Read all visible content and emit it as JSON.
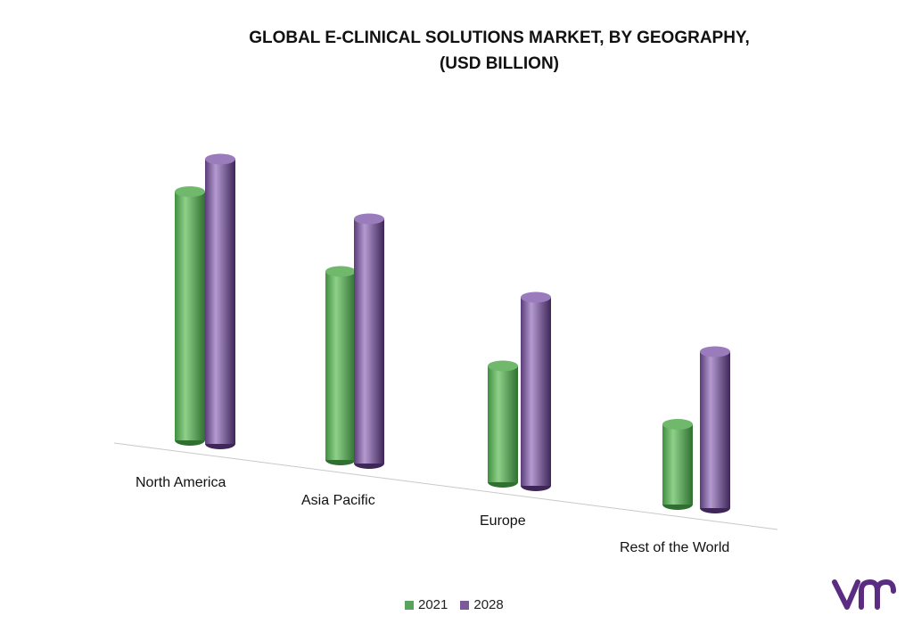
{
  "title_line1": "GLOBAL E-CLINICAL SOLUTIONS MARKET,  BY GEOGRAPHY,",
  "title_line2": "(USD BILLION)",
  "colors": {
    "series_2021": "#5aa35c",
    "series_2028": "#7c5a9a",
    "logo": "#5b2d82"
  },
  "logo_icon": "vmr-logo",
  "chart_data": {
    "type": "bar",
    "title": "GLOBAL E-CLINICAL SOLUTIONS MARKET,  BY GEOGRAPHY, (USD BILLION)",
    "categories": [
      "North America",
      "Asia Pacific",
      "Europe",
      "Rest of the World"
    ],
    "series": [
      {
        "name": "2021",
        "values": [
          3.1,
          2.35,
          1.45,
          1.0
        ]
      },
      {
        "name": "2028",
        "values": [
          3.55,
          3.05,
          2.35,
          1.95
        ]
      }
    ],
    "ylim": [
      0,
      4
    ],
    "grid": false,
    "legend": "bottom"
  }
}
